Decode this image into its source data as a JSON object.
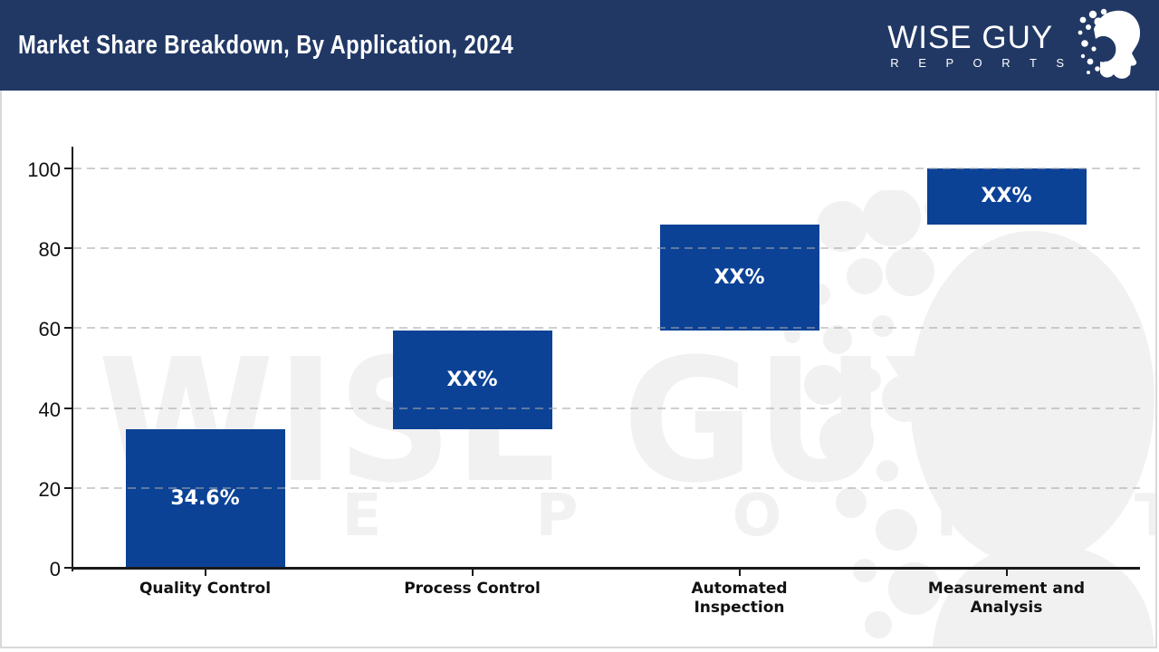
{
  "header": {
    "title": "Market Share Breakdown, By Application, 2024",
    "logo_name": "WISE GUY",
    "logo_subtitle": "R E P O R T S"
  },
  "watermark": {
    "line1": "WISE GUY",
    "line2": "R E P O R T S"
  },
  "colors": {
    "header_bg": "#213865",
    "bar": "#0b4296",
    "bar_label": "#ffffff",
    "axis": "#1a1a1a",
    "watermark": "#f1f1f1",
    "grid": "#b0b0b0"
  },
  "chart_data": {
    "type": "bar",
    "subtype": "waterfall",
    "title": "Market Share Breakdown, By Application, 2024",
    "categories": [
      "Quality Control",
      "Process Control",
      "Automated Inspection",
      "Measurement and Analysis"
    ],
    "segments": [
      {
        "category": "Quality Control",
        "start": 0,
        "end": 34.6,
        "label": "34.6%"
      },
      {
        "category": "Process Control",
        "start": 34.6,
        "end": 59.5,
        "label": "XX%"
      },
      {
        "category": "Automated Inspection",
        "start": 59.5,
        "end": 86,
        "label": "XX%"
      },
      {
        "category": "Measurement and Analysis",
        "start": 86,
        "end": 100,
        "label": "XX%"
      }
    ],
    "xlabel": "",
    "ylabel": "",
    "ylim": [
      0,
      105
    ],
    "yticks": [
      0,
      20,
      40,
      60,
      80,
      100
    ],
    "grid": "horizontal-dashed",
    "legend": "none"
  }
}
